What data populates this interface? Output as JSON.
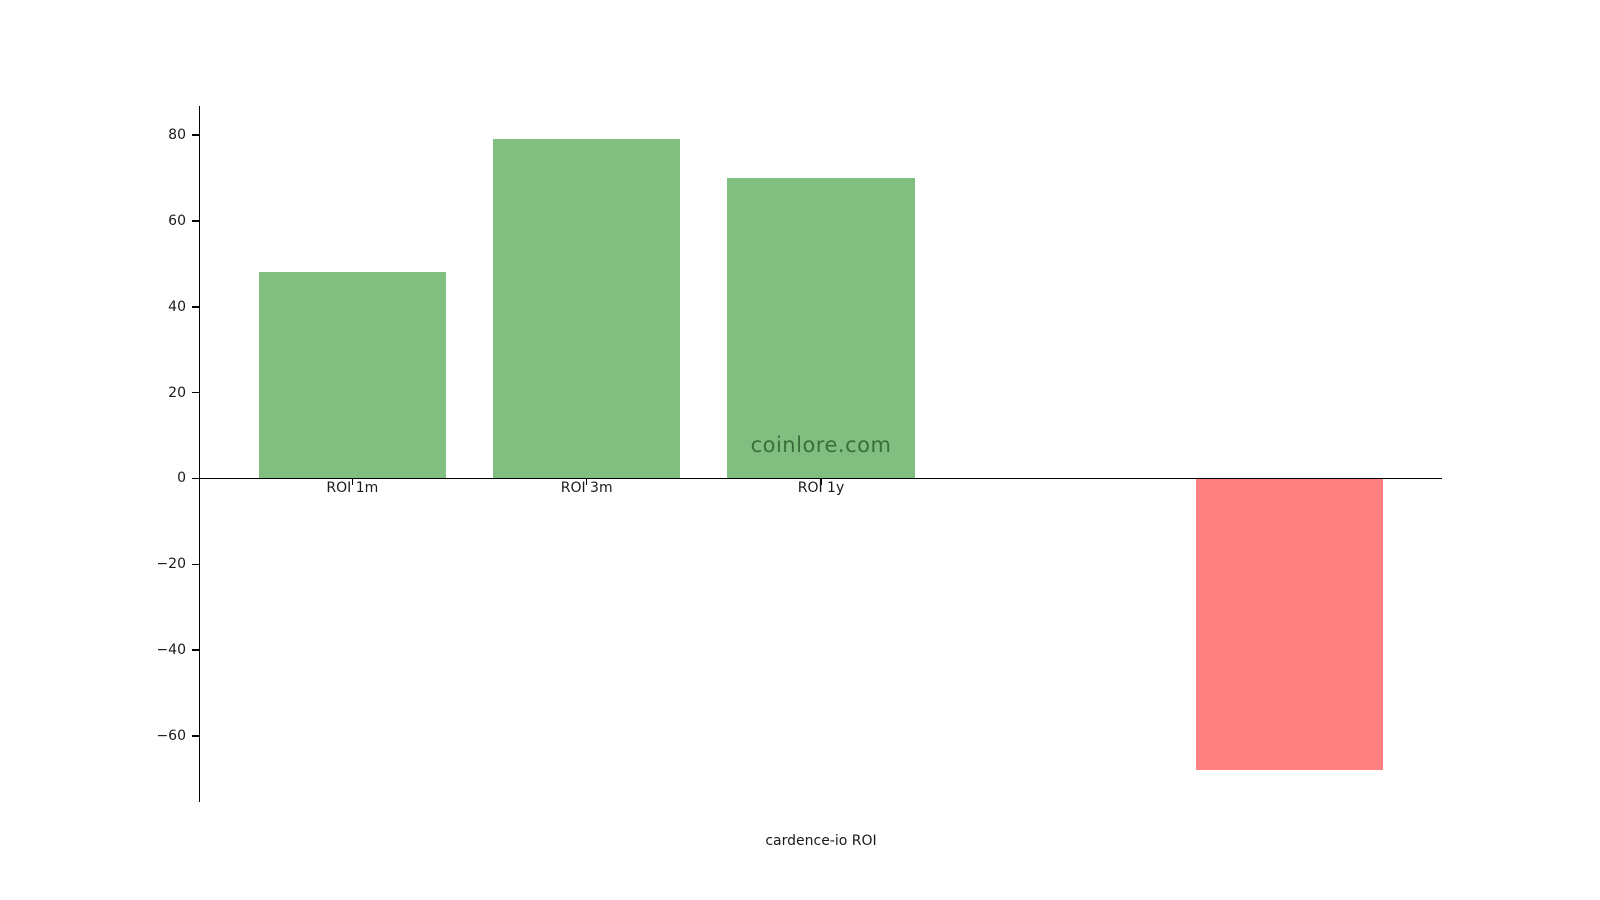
{
  "chart_data": {
    "type": "bar",
    "title": "cardence-io ROI",
    "watermark": "coinlore.com",
    "categories": [
      "ROI 1m",
      "ROI 3m",
      "ROI 1y",
      "",
      ""
    ],
    "values": [
      48,
      79,
      70,
      0,
      -68
    ],
    "bar_colors": [
      "#80BF80",
      "#80BF80",
      "#80BF80",
      "#80BF80",
      "#FF8080"
    ],
    "positive_color": "#80BF80",
    "negative_color": "#FF8080",
    "ytick_values": [
      80,
      60,
      40,
      20,
      0,
      -20,
      -40,
      -60
    ],
    "ytick_labels": [
      "80",
      "60",
      "40",
      "20",
      "0",
      "−20",
      "−40",
      "−60"
    ],
    "ylim": [
      -75.4,
      86.8
    ],
    "xlim": [
      -0.65,
      4.65
    ],
    "bar_width": 0.8,
    "grid": false,
    "legend": null,
    "axis_color": "#000000",
    "tick_label_color": "#1a1a1a",
    "title_color": "#1a1a1a",
    "watermark_color": "#3c6e3c",
    "background_color": "#ffffff"
  }
}
